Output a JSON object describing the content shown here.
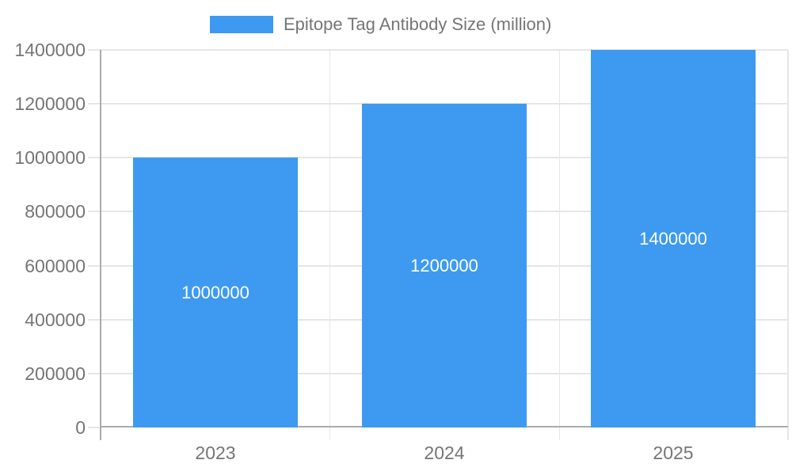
{
  "chart_data": {
    "type": "bar",
    "title": "Epitope Tag Antibody Size (million)",
    "categories": [
      "2023",
      "2024",
      "2025"
    ],
    "values": [
      1000000,
      1200000,
      1400000
    ],
    "bar_labels": [
      "1000000",
      "1200000",
      "1400000"
    ],
    "y_ticks": [
      0,
      200000,
      400000,
      600000,
      800000,
      1000000,
      1200000,
      1400000
    ],
    "y_tick_labels": [
      "0",
      "200000",
      "400000",
      "600000",
      "800000",
      "1000000",
      "1200000",
      "1400000"
    ],
    "ylim": [
      0,
      1400000
    ],
    "xlabel": "",
    "ylabel": "",
    "legend_position": "top-center",
    "grid": true,
    "colors": {
      "bar": "#3d9af0",
      "grid": "#e6e6e6",
      "axis": "#ababab",
      "text": "#757575",
      "bar_label": "#ffffff",
      "background": "#ffffff"
    }
  }
}
